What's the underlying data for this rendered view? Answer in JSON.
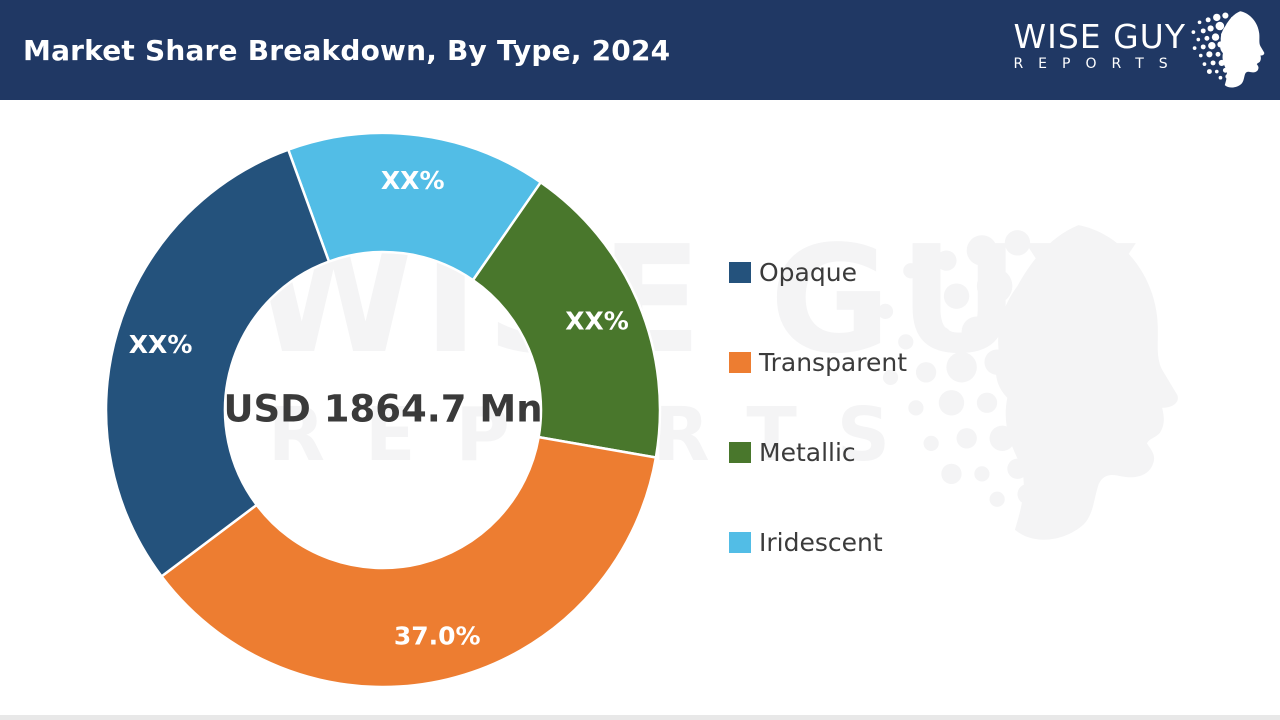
{
  "header": {
    "title": "Market Share Breakdown, By Type, 2024",
    "bg_color": "#203864",
    "logo": {
      "line1": "WISE GUY",
      "line2": "REPORTS"
    }
  },
  "chart_data": {
    "type": "pie",
    "subtype": "donut",
    "title": "Market Share Breakdown, By Type, 2024",
    "center_label": "USD 1864.7 Mn",
    "start_angle_deg": -20,
    "legend_position": "right",
    "segments": [
      {
        "label": "Iridescent",
        "display_label": "XX%",
        "pct": 15.2,
        "color": "#52BDE6"
      },
      {
        "label": "Metallic",
        "display_label": "XX%",
        "pct": 18.1,
        "color": "#49772C"
      },
      {
        "label": "Transparent",
        "display_label": "37.0%",
        "pct": 37.0,
        "color": "#ED7D31"
      },
      {
        "label": "Opaque",
        "display_label": "XX%",
        "pct": 29.7,
        "color": "#24527C"
      }
    ],
    "legend": [
      {
        "label": "Opaque",
        "color": "#24527C"
      },
      {
        "label": "Transparent",
        "color": "#ED7D31"
      },
      {
        "label": "Metallic",
        "color": "#49772C"
      },
      {
        "label": "Iridescent",
        "color": "#52BDE6"
      }
    ]
  },
  "watermark": {
    "line1": "WISE GUY",
    "line2": "REPORTS"
  },
  "colors": {
    "header_bg": "#203864",
    "watermark": "#f4f4f5",
    "bottom_strip": "#e8e8e8"
  }
}
